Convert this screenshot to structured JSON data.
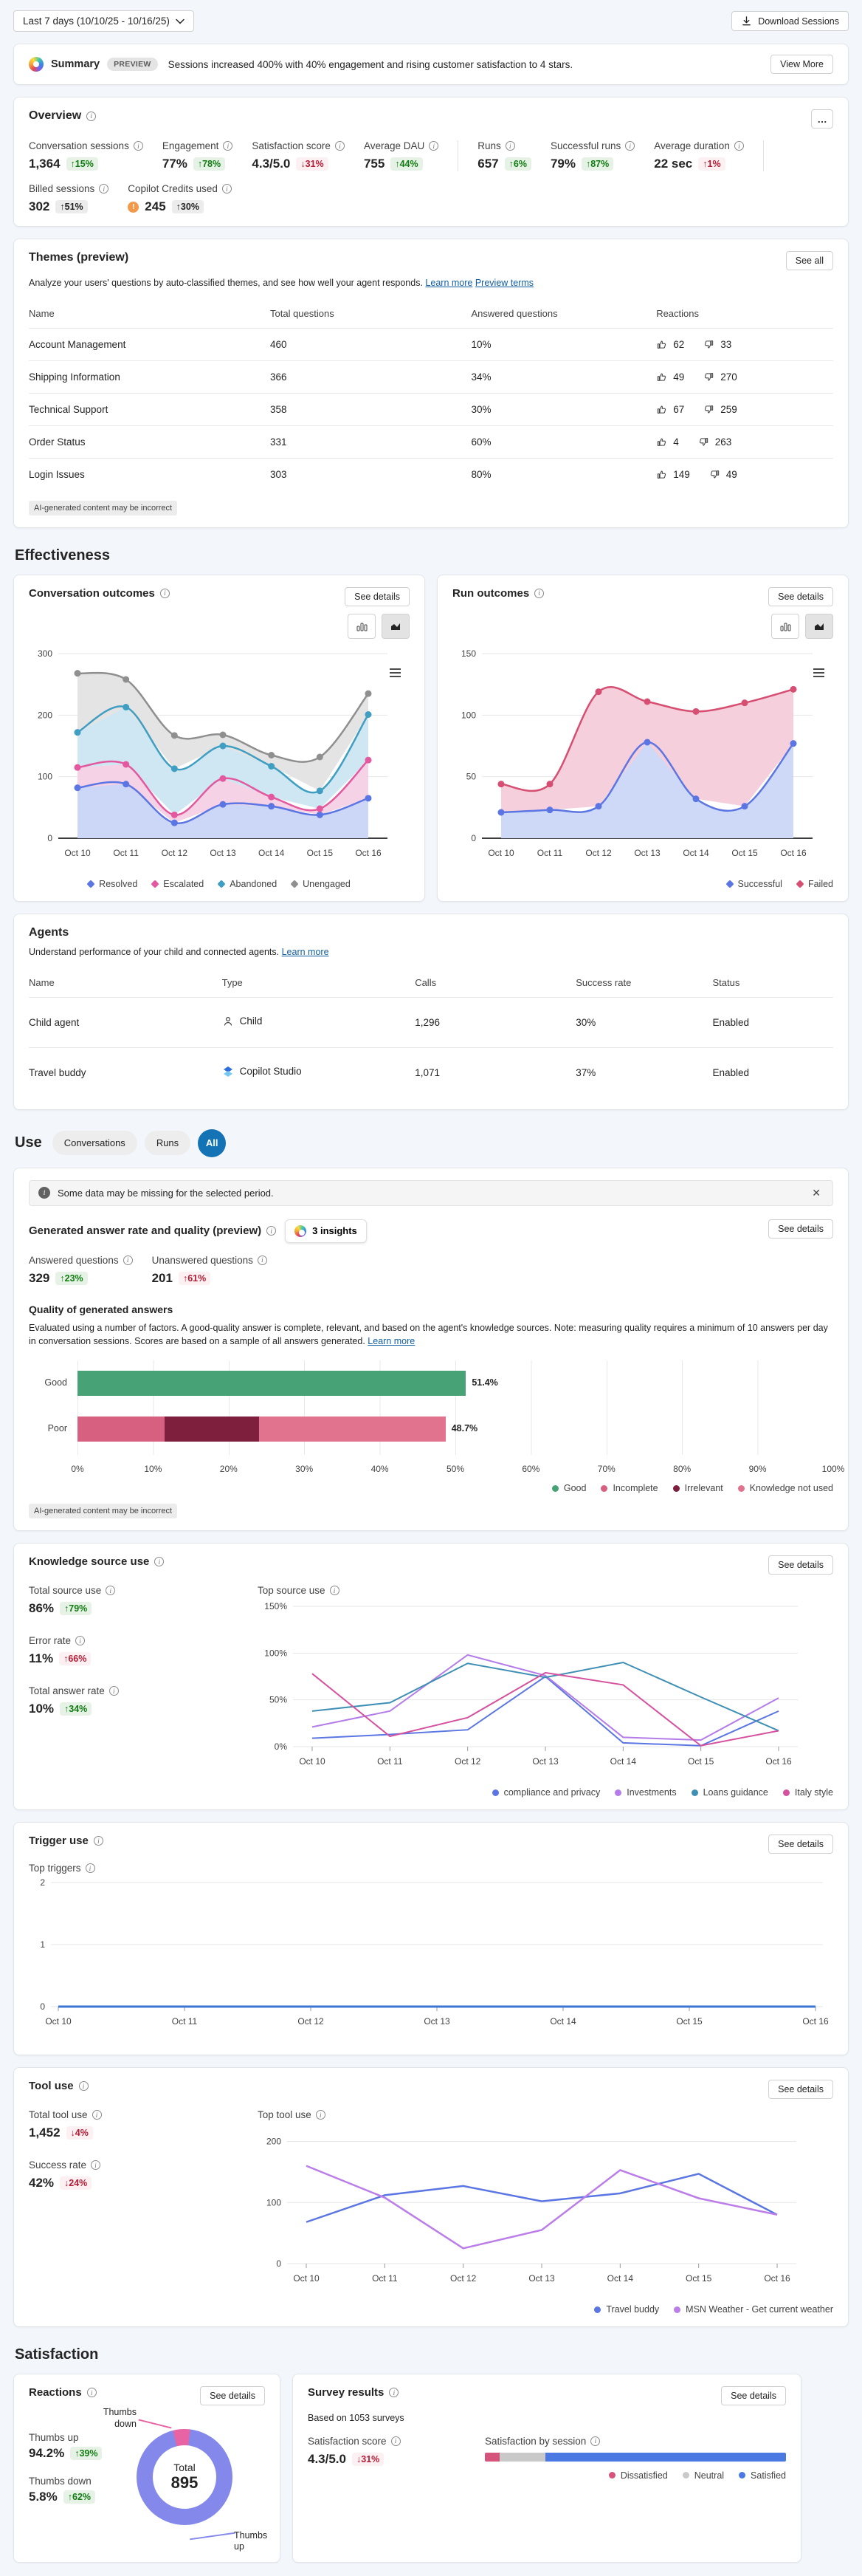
{
  "toolbar": {
    "date_range": "Last 7 days (10/10/25 - 10/16/25)",
    "download_label": "Download Sessions"
  },
  "summary": {
    "title": "Summary",
    "preview_badge": "PREVIEW",
    "text": "Sessions increased 400% with 40% engagement and rising customer satisfaction to 4 stars.",
    "view_more": "View More"
  },
  "overview": {
    "title": "Overview",
    "metrics": [
      {
        "label": "Conversation sessions",
        "value": "1,364",
        "change": "↑15%",
        "tone": "up-good"
      },
      {
        "label": "Engagement",
        "value": "77%",
        "change": "↑78%",
        "tone": "up-good"
      },
      {
        "label": "Satisfaction score",
        "value": "4.3/5.0",
        "change": "↓31%",
        "tone": "down-bad"
      },
      {
        "label": "Average DAU",
        "value": "755",
        "change": "↑44%",
        "tone": "up-good",
        "cls": "div-after"
      },
      {
        "label": "Runs",
        "value": "657",
        "change": "↑6%",
        "tone": "up-good"
      },
      {
        "label": "Successful runs",
        "value": "79%",
        "change": "↑87%",
        "tone": "up-good"
      },
      {
        "label": "Average duration",
        "value": "22 sec",
        "change": "↑1%",
        "tone": "up-bad",
        "cls": "div-after"
      }
    ],
    "metrics2": [
      {
        "label": "Billed sessions",
        "value": "302",
        "change": "↑51%",
        "tone": "neutral"
      },
      {
        "label": "Copilot Credits used",
        "value": "245",
        "change": "↑30%",
        "tone": "neutral",
        "warn": true
      }
    ]
  },
  "themes": {
    "title": "Themes (preview)",
    "see_all": "See all",
    "desc": "Analyze your users' questions by auto-classified themes, and see how well your agent responds.",
    "learn_more": "Learn more",
    "preview_terms": "Preview terms",
    "headers": {
      "name": "Name",
      "total": "Total questions",
      "answered": "Answered questions",
      "reactions": "Reactions"
    },
    "rows": [
      {
        "name": "Account Management",
        "total": "460",
        "answered": "10%",
        "up": "62",
        "down": "33"
      },
      {
        "name": "Shipping Information",
        "total": "366",
        "answered": "34%",
        "up": "49",
        "down": "270"
      },
      {
        "name": "Technical Support",
        "total": "358",
        "answered": "30%",
        "up": "67",
        "down": "259"
      },
      {
        "name": "Order Status",
        "total": "331",
        "answered": "60%",
        "up": "4",
        "down": "263"
      },
      {
        "name": "Login Issues",
        "total": "303",
        "answered": "80%",
        "up": "149",
        "down": "49"
      }
    ],
    "ai_note": "AI-generated content may be incorrect"
  },
  "effectiveness": {
    "title": "Effectiveness",
    "conv_title": "Conversation outcomes",
    "run_title": "Run outcomes",
    "see_details": "See details"
  },
  "agents": {
    "title": "Agents",
    "desc": "Understand performance of your child and connected agents.",
    "learn_more": "Learn more",
    "headers": {
      "name": "Name",
      "type": "Type",
      "calls": "Calls",
      "rate": "Success rate",
      "status": "Status"
    },
    "rows": [
      {
        "name": "Child agent",
        "type": "Child",
        "is_person": true,
        "calls": "1,296",
        "rate": "30%",
        "status": "Enabled"
      },
      {
        "name": "Travel buddy",
        "type": "Copilot Studio",
        "is_copilot": true,
        "calls": "1,071",
        "rate": "37%",
        "status": "Enabled"
      }
    ]
  },
  "use": {
    "title": "Use",
    "tabs": [
      {
        "label": "Conversations"
      },
      {
        "label": "Runs"
      },
      {
        "label": "All",
        "cls": "active"
      }
    ],
    "banner": "Some data may be missing for the selected period.",
    "gen": {
      "title": "Generated answer rate and quality (preview)",
      "insights": "3 insights",
      "see_details": "See details",
      "metrics": [
        {
          "label": "Answered questions",
          "value": "329",
          "change": "↑23%",
          "tone": "up-good"
        },
        {
          "label": "Unanswered questions",
          "value": "201",
          "change": "↑61%",
          "tone": "up-bad"
        }
      ],
      "quality_title": "Quality of generated answers",
      "quality_desc": "Evaluated using a number of factors. A good-quality answer is complete, relevant, and based on the agent's knowledge sources. Note: measuring quality requires a minimum of 10 answers per day in conversation sessions. Scores are based on a sample of all answers generated.",
      "learn_more": "Learn more",
      "ai_note": "AI-generated content may be incorrect"
    },
    "knowledge": {
      "title": "Knowledge source use",
      "see_details": "See details",
      "chart_title": "Top source use",
      "metrics": [
        {
          "label": "Total source use",
          "value": "86%",
          "change": "↑79%",
          "tone": "up-good"
        },
        {
          "label": "Error rate",
          "value": "11%",
          "change": "↑66%",
          "tone": "up-bad"
        },
        {
          "label": "Total answer rate",
          "value": "10%",
          "change": "↑34%",
          "tone": "up-good"
        }
      ]
    },
    "trigger": {
      "title": "Trigger use",
      "see_details": "See details",
      "chart_title": "Top triggers"
    },
    "tool": {
      "title": "Tool use",
      "see_details": "See details",
      "chart_title": "Top tool use",
      "metrics": [
        {
          "label": "Total tool use",
          "value": "1,452",
          "change": "↓4%",
          "tone": "down-bad"
        },
        {
          "label": "Success rate",
          "value": "42%",
          "change": "↓24%",
          "tone": "down-bad"
        }
      ]
    }
  },
  "satisfaction": {
    "title": "Satisfaction",
    "reactions": {
      "title": "Reactions",
      "see_details": "See details",
      "metrics": [
        {
          "label": "Thumbs up",
          "value": "94.2%",
          "change": "↑39%",
          "tone": "up-good"
        },
        {
          "label": "Thumbs down",
          "value": "5.8%",
          "change": "↑62%",
          "tone": "up-good"
        }
      ],
      "total_label": "Total",
      "total_value": "895"
    },
    "survey": {
      "title": "Survey results",
      "see_details": "See details",
      "based_on": "Based on 1053 surveys",
      "score_label": "Satisfaction score",
      "score_value": "4.3/5.0",
      "score_change": "↓31%",
      "by_session_label": "Satisfaction by session"
    }
  },
  "chart_data": {
    "conversation_outcomes": {
      "type": "area",
      "stacked": true,
      "x": [
        "Oct 10",
        "Oct 11",
        "Oct 12",
        "Oct 13",
        "Oct 14",
        "Oct 15",
        "Oct 16"
      ],
      "y_ticks": [
        0,
        100,
        200,
        300
      ],
      "y_max": 300,
      "series": [
        {
          "name": "Resolved",
          "color": "#5b76e3",
          "fill": "#ccd6f6",
          "values": [
            82,
            88,
            25,
            55,
            52,
            38,
            65
          ]
        },
        {
          "name": "Escalated",
          "color": "#e3589e",
          "fill": "#f6d2e6",
          "values": [
            33,
            32,
            13,
            42,
            15,
            10,
            62
          ]
        },
        {
          "name": "Abandoned",
          "color": "#3f9ec2",
          "fill": "#cfe7f2",
          "values": [
            57,
            93,
            75,
            53,
            50,
            29,
            74
          ]
        },
        {
          "name": "Unengaged",
          "color": "#8f8f8f",
          "fill": "#e4e4e4",
          "values": [
            96,
            45,
            54,
            18,
            18,
            55,
            34
          ]
        }
      ]
    },
    "run_outcomes": {
      "type": "area",
      "stacked": true,
      "x": [
        "Oct 10",
        "Oct 11",
        "Oct 12",
        "Oct 13",
        "Oct 14",
        "Oct 15",
        "Oct 16"
      ],
      "y_ticks": [
        0,
        50,
        100,
        150
      ],
      "y_max": 150,
      "series": [
        {
          "name": "Successful",
          "color": "#5b76e3",
          "fill": "#cdd9f7",
          "values": [
            21,
            23,
            26,
            78,
            32,
            26,
            77
          ]
        },
        {
          "name": "Failed",
          "color": "#d64f72",
          "fill": "#f5cfdb",
          "values": [
            23,
            21,
            93,
            33,
            71,
            84,
            44
          ]
        }
      ]
    },
    "top_source_use": {
      "type": "line",
      "x": [
        "Oct 10",
        "Oct 11",
        "Oct 12",
        "Oct 13",
        "Oct 14",
        "Oct 15",
        "Oct 16"
      ],
      "y_ticks": [
        0,
        50,
        100,
        150
      ],
      "y_max": 150,
      "y_suffix": "%",
      "series": [
        {
          "name": "compliance and privacy",
          "color": "#5b76e3",
          "values": [
            9,
            13,
            18,
            75,
            4,
            1,
            38
          ]
        },
        {
          "name": "Investments",
          "color": "#b47ce8",
          "values": [
            21,
            38,
            98,
            76,
            10,
            7,
            52
          ]
        },
        {
          "name": "Loans guidance",
          "color": "#3f8fb5",
          "values": [
            38,
            47,
            89,
            74,
            90,
            53,
            17
          ]
        },
        {
          "name": "Italy style",
          "color": "#d6519d",
          "values": [
            78,
            11,
            31,
            79,
            66,
            1,
            17
          ]
        }
      ]
    },
    "top_triggers": {
      "type": "line",
      "x": [
        "Oct 10",
        "Oct 11",
        "Oct 12",
        "Oct 13",
        "Oct 14",
        "Oct 15",
        "Oct 16"
      ],
      "y_ticks": [
        0,
        1,
        2
      ],
      "y_max": 2,
      "series": [
        {
          "name": "Trigger",
          "color": "#3b76d6",
          "values": [
            0,
            0,
            0,
            0,
            0,
            0,
            0
          ]
        }
      ]
    },
    "top_tool_use": {
      "type": "line",
      "x": [
        "Oct 10",
        "Oct 11",
        "Oct 12",
        "Oct 13",
        "Oct 14",
        "Oct 15",
        "Oct 16"
      ],
      "y_ticks": [
        0,
        100,
        200
      ],
      "y_max": 220,
      "series": [
        {
          "name": "Travel buddy",
          "color": "#5b76e3",
          "values": [
            68,
            112,
            127,
            102,
            115,
            147,
            80
          ]
        },
        {
          "name": "MSN Weather - Get current weather",
          "color": "#bb7de8",
          "values": [
            160,
            108,
            25,
            55,
            153,
            107,
            80
          ]
        }
      ]
    },
    "quality": {
      "type": "bar",
      "x_ticks": [
        "0%",
        "10%",
        "20%",
        "30%",
        "40%",
        "50%",
        "60%",
        "70%",
        "80%",
        "90%",
        "100%"
      ],
      "rows": [
        {
          "label": "Good",
          "value_label": "51.4%",
          "total": 51.4,
          "segments": [
            {
              "label": "Good",
              "value": 51.4,
              "color": "#47a376"
            }
          ]
        },
        {
          "label": "Poor",
          "value_label": "48.7%",
          "total": 48.7,
          "segments": [
            {
              "label": "Incomplete",
              "value": 11.5,
              "color": "#d75f80"
            },
            {
              "label": "Irrelevant",
              "value": 12.5,
              "color": "#7e1f3e"
            },
            {
              "label": "Knowledge not used",
              "value": 24.7,
              "color": "#e2738f"
            }
          ]
        }
      ],
      "legend": [
        {
          "label": "Good",
          "color": "#47a376"
        },
        {
          "label": "Incomplete",
          "color": "#d75f80"
        },
        {
          "label": "Irrelevant",
          "color": "#7e1f3e"
        },
        {
          "label": "Knowledge not used",
          "color": "#e2738f"
        }
      ]
    },
    "reactions_donut": {
      "type": "pie",
      "slices": [
        {
          "label": "Thumbs up",
          "value": 94.2,
          "color": "#8388ea"
        },
        {
          "label": "Thumbs down",
          "value": 5.8,
          "color": "#e763a4"
        }
      ],
      "total": 895
    },
    "satisfaction_by_session": {
      "type": "bar",
      "segments": [
        {
          "label": "Dissatisfied",
          "value": 5,
          "color": "#d6547b"
        },
        {
          "label": "Neutral",
          "value": 15,
          "color": "#c9c9c9"
        },
        {
          "label": "Satisfied",
          "value": 80,
          "color": "#4b79e3"
        }
      ]
    }
  }
}
